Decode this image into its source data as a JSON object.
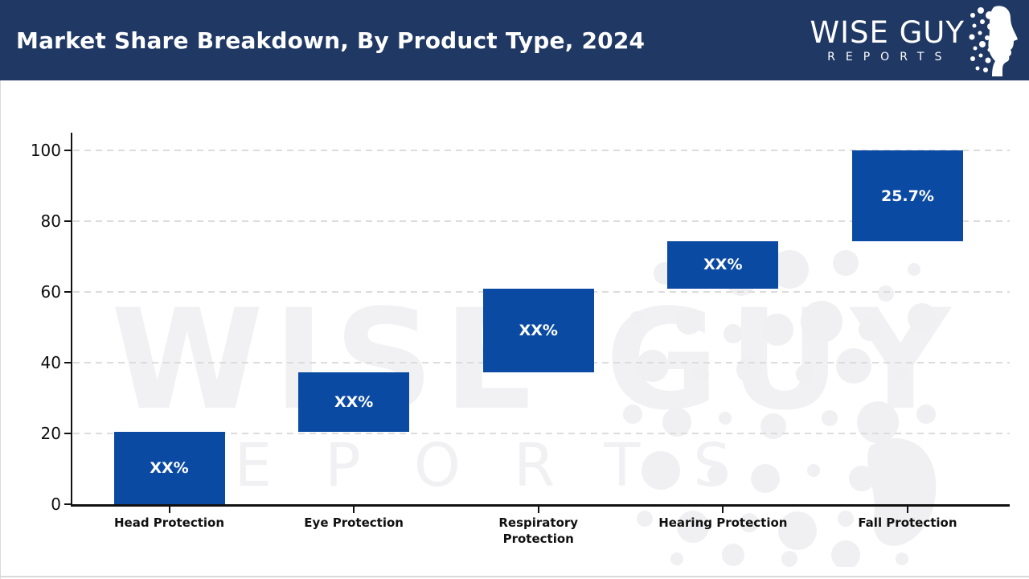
{
  "header": {
    "title": "Market Share Breakdown, By Product Type, 2024",
    "brand_line1": "WISE GUY",
    "brand_line2": "REPORTS",
    "bg_color": "#203864"
  },
  "watermark": {
    "line1": "WISE GUY",
    "line2": "REPORTS"
  },
  "chart_data": {
    "type": "bar",
    "subtype": "waterfall",
    "title": "Market Share Breakdown, By Product Type, 2024",
    "categories": [
      "Head Protection",
      "Eye Protection",
      "Respiratory Protection",
      "Hearing Protection",
      "Fall Protection"
    ],
    "segments": [
      {
        "category": "Head Protection",
        "start": 0,
        "end": 20.4,
        "label": "XX%"
      },
      {
        "category": "Eye Protection",
        "start": 20.4,
        "end": 37.3,
        "label": "XX%"
      },
      {
        "category": "Respiratory Protection",
        "start": 37.3,
        "end": 61.0,
        "label": "XX%"
      },
      {
        "category": "Hearing Protection",
        "start": 61.0,
        "end": 74.3,
        "label": "XX%"
      },
      {
        "category": "Fall Protection",
        "start": 74.3,
        "end": 100.0,
        "label": "25.7%"
      }
    ],
    "yticks": [
      0,
      20,
      40,
      60,
      80,
      100
    ],
    "ylim": [
      0,
      105
    ],
    "xlabel": "",
    "ylabel": "",
    "bar_color": "#0b4aa2",
    "bar_label_color": "#ffffff",
    "grid": "horizontal-dashed",
    "grid_color": "#dcdcdc",
    "legend": false
  }
}
